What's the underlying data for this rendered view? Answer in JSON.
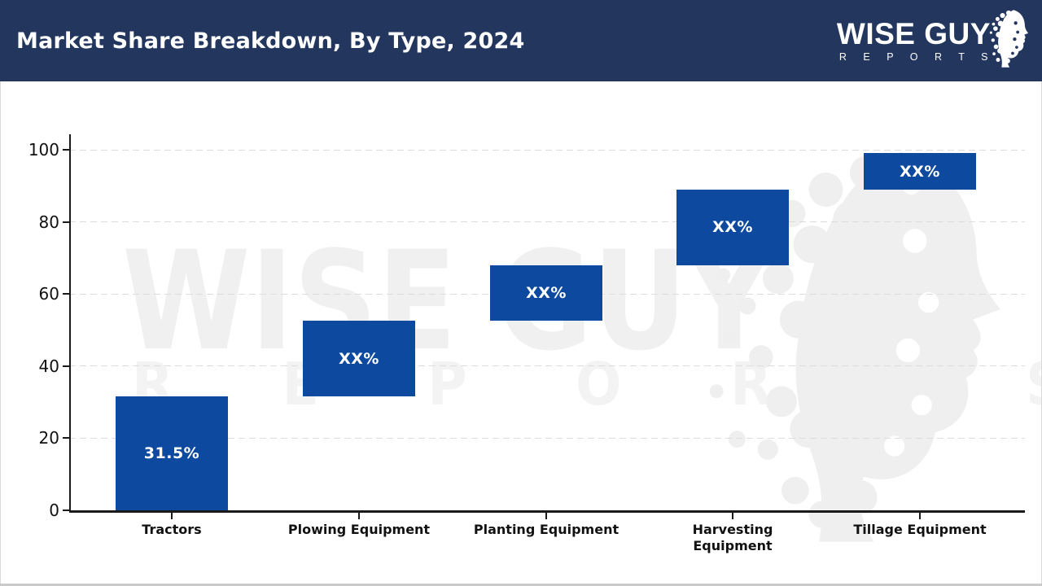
{
  "header": {
    "title": "Market Share Breakdown, By Type, 2024",
    "background_color": "#22365e",
    "logo": {
      "name": "WISE GUY",
      "subtitle": "R E P O R T S"
    }
  },
  "watermark": {
    "line1": "WISE GUY",
    "line2": "R E P O R T S"
  },
  "chart_data": {
    "type": "bar",
    "subtype": "floating-waterfall",
    "title": "Market Share Breakdown, By Type, 2024",
    "categories": [
      "Tractors",
      "Plowing Equipment",
      "Planting Equipment",
      "Harvesting Equipment",
      "Tillage Equipment"
    ],
    "tick_labels": [
      "Tractors",
      "Plowing Equipment",
      "Planting Equipment",
      "Harvesting\nEquipment",
      "Tillage Equipment"
    ],
    "segments": [
      {
        "category": "Tractors",
        "base": 0,
        "top": 31.5,
        "value": 31.5,
        "label": "31.5%"
      },
      {
        "category": "Plowing Equipment",
        "base": 31.5,
        "top": 52.5,
        "value": 21,
        "label": "XX%"
      },
      {
        "category": "Planting Equipment",
        "base": 52.5,
        "top": 68,
        "value": 15.5,
        "label": "XX%"
      },
      {
        "category": "Harvesting Equipment",
        "base": 68,
        "top": 89,
        "value": 21,
        "label": "XX%"
      },
      {
        "category": "Tillage Equipment",
        "base": 89,
        "top": 99,
        "value": 10,
        "label": "XX%"
      }
    ],
    "yticks": [
      "0",
      "20",
      "40",
      "60",
      "80",
      "100"
    ],
    "ylim": [
      0,
      104
    ],
    "xlabel": "",
    "ylabel": "",
    "bar_color": "#0d4a9f",
    "bar_label_color": "#ffffff",
    "grid": {
      "horizontal": true,
      "style": "dashed",
      "color": "#dcdcdc"
    },
    "legend": "none",
    "axis_color": "#1a1a1a"
  }
}
